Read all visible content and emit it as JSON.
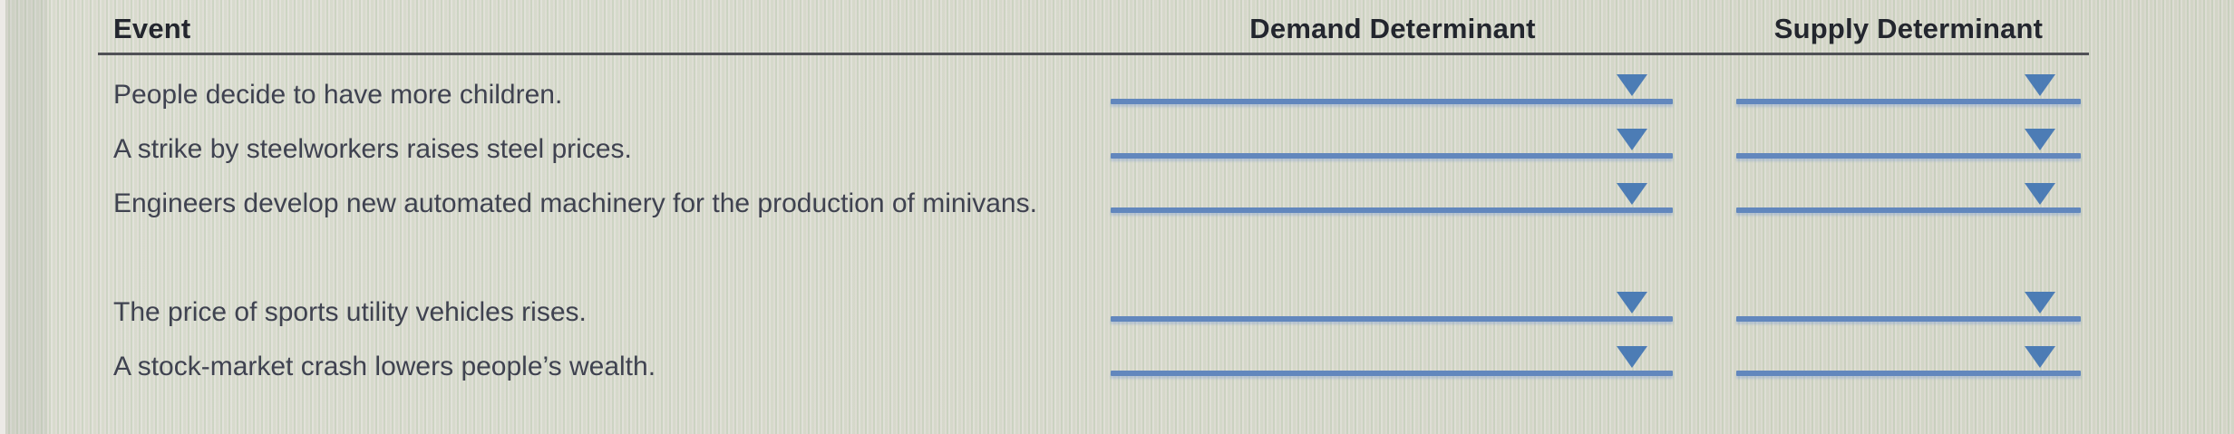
{
  "table": {
    "headers": {
      "event": "Event",
      "demand": "Demand Determinant",
      "supply": "Supply Determinant"
    },
    "rows": [
      {
        "event": "People decide to have more children."
      },
      {
        "event": "A strike by steelworkers raises steel prices."
      },
      {
        "event": "Engineers develop new automated machinery for the production of minivans."
      },
      {
        "event": "The price of sports utility vehicles rises."
      },
      {
        "event": "A stock-market crash lowers people’s wealth."
      }
    ]
  },
  "dropdown": {
    "selected_value": "",
    "icon": "chevron-down-icon"
  },
  "colors": {
    "background": "#d7d9cb",
    "header_text": "#23262e",
    "body_text": "#3f4250",
    "header_rule": "#505156",
    "dropdown_line": "#6287bd",
    "dropdown_arrow": "#4c7cb5"
  }
}
